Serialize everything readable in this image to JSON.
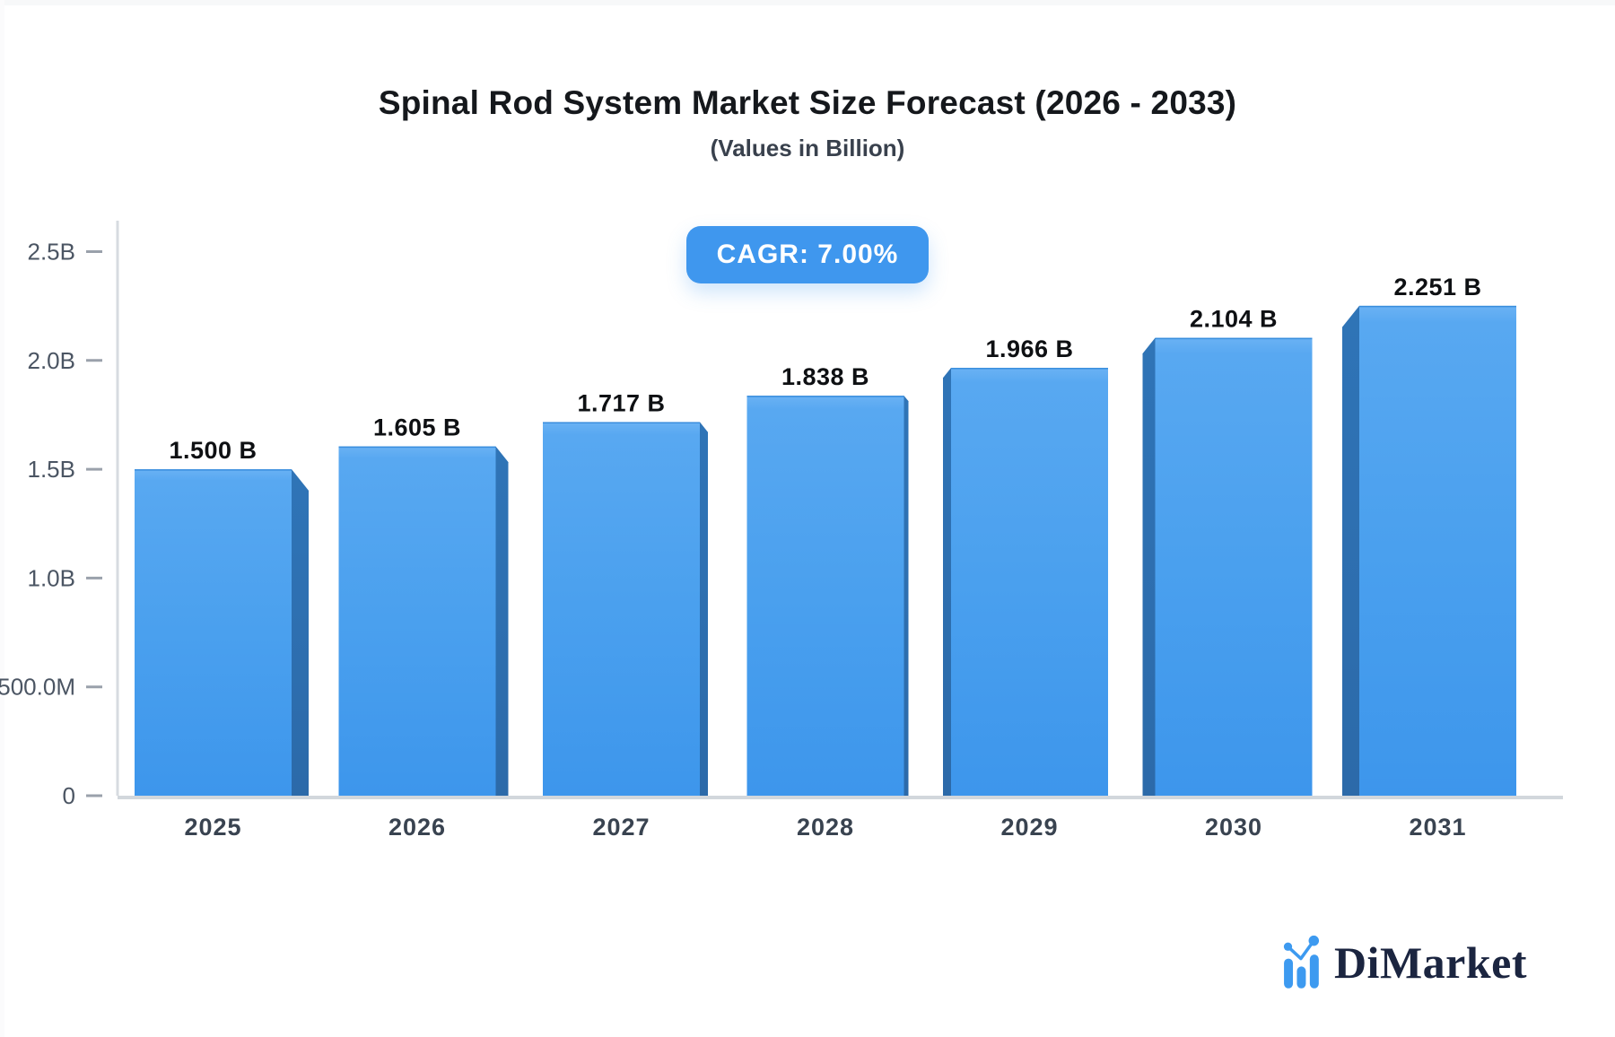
{
  "header": {
    "title": "Spinal Rod System Market Size Forecast (2026 - 2033)",
    "subtitle": "(Values in Billion)"
  },
  "badge": {
    "label": "CAGR: 7.00%"
  },
  "chart_data": {
    "type": "bar",
    "title": "Spinal Rod System Market Size Forecast (2026 - 2033)",
    "subtitle": "(Values in Billion)",
    "cagr_percent": 7.0,
    "categories": [
      "2025",
      "2026",
      "2027",
      "2028",
      "2029",
      "2030",
      "2031"
    ],
    "values": [
      1.5,
      1.605,
      1.717,
      1.838,
      1.966,
      2.104,
      2.251
    ],
    "value_labels": [
      "1.500 B",
      "1.605 B",
      "1.717 B",
      "1.838 B",
      "1.966 B",
      "2.104 B",
      "2.251 B"
    ],
    "ylim": [
      0,
      2.5
    ],
    "yticks": [
      {
        "value": 0.0,
        "label": "0"
      },
      {
        "value": 0.5,
        "label": "500.0M"
      },
      {
        "value": 1.0,
        "label": "1.0B"
      },
      {
        "value": 1.5,
        "label": "1.5B"
      },
      {
        "value": 2.0,
        "label": "2.0B"
      },
      {
        "value": 2.5,
        "label": "2.5B"
      }
    ],
    "grid": false,
    "legend": null,
    "bar_style": {
      "face_top": "#5caaf1",
      "face_mid": "#4aa0ee",
      "face_bottom": "#3d96ec",
      "highlight": "#6ab2f4",
      "side": "#2e72b4",
      "side_dark": "#2c6aa9",
      "top_edge_line": "#3a8edd"
    }
  },
  "colors": {
    "badge_bg": "#3f97ee",
    "badge_text": "#ffffff",
    "axis_line": "#d7dbe0",
    "baseline": "#d2d7dc",
    "tick_dash": "#9aa1ab",
    "tick_text": "#4b5563",
    "year_text": "#394350",
    "value_text": "#0e1013",
    "logo_text": "#1b2540",
    "logo_blue": "#3d9af0"
  },
  "footer": {
    "brand": "DiMarket"
  }
}
